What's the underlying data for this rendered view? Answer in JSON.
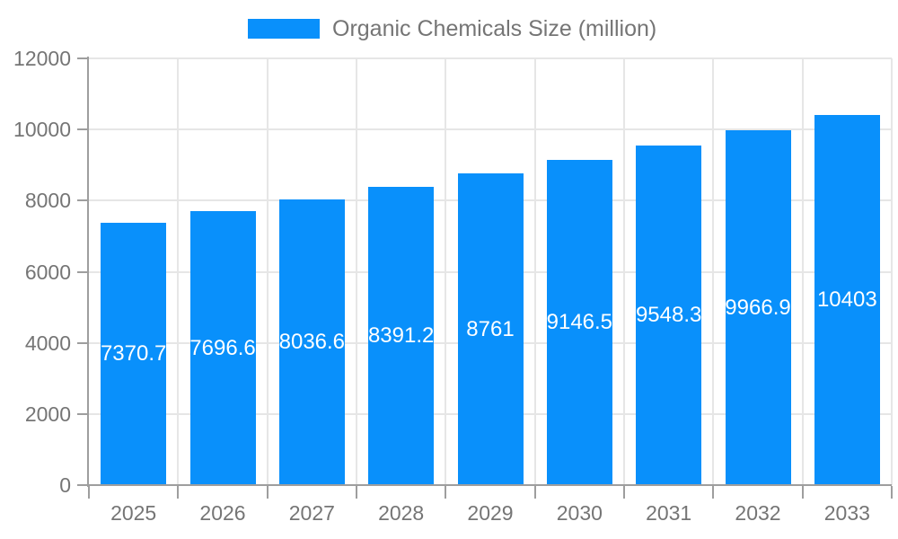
{
  "legend": {
    "label": "Organic Chemicals Size (million)"
  },
  "chart_data": {
    "type": "bar",
    "title": "Organic Chemicals Size (million)",
    "categories": [
      "2025",
      "2026",
      "2027",
      "2028",
      "2029",
      "2030",
      "2031",
      "2032",
      "2033"
    ],
    "values": [
      7370.7,
      7696.6,
      8036.6,
      8391.2,
      8761,
      9146.5,
      9548.3,
      9966.9,
      10403
    ],
    "value_labels": [
      "7370.7",
      "7696.6",
      "8036.6",
      "8391.2",
      "8761",
      "9146.5",
      "9548.3",
      "9966.9",
      "10403"
    ],
    "xlabel": "",
    "ylabel": "",
    "ylim": [
      0,
      12000
    ],
    "yticks": [
      0,
      2000,
      4000,
      6000,
      8000,
      10000,
      12000
    ],
    "grid": true,
    "legend_position": "top",
    "colors": {
      "bar": "#0990fb",
      "data_label": "#ffffff",
      "axis_text": "#757575",
      "axis_line": "#9e9e9e",
      "gridline": "#e6e6e6",
      "background": "#ffffff"
    }
  }
}
